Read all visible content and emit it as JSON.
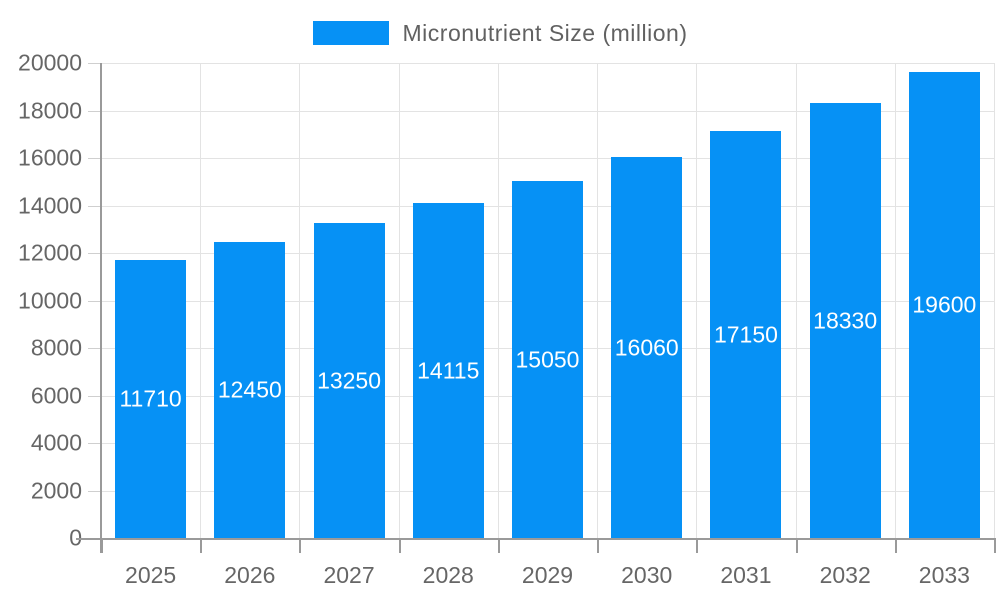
{
  "legend": {
    "label": "Micronutrient Size (million)"
  },
  "chart_data": {
    "type": "bar",
    "title": "",
    "categories": [
      "2025",
      "2026",
      "2027",
      "2028",
      "2029",
      "2030",
      "2031",
      "2032",
      "2033"
    ],
    "series": [
      {
        "name": "Micronutrient Size (million)",
        "values": [
          11710,
          12450,
          13250,
          14115,
          15050,
          16060,
          17150,
          18330,
          19600
        ]
      }
    ],
    "xlabel": "",
    "ylabel": "",
    "ylim": [
      0,
      20000
    ],
    "ytick_step": 2000,
    "grid": true,
    "legend_position": "top-center",
    "value_labels": "inside-center",
    "colors": {
      "bar": "#0691f5",
      "value_label_text": "#ffffff",
      "axis_text": "#666666",
      "legend_text": "#616161",
      "gridline": "#e3e3e3",
      "axis_line": "#9a9a9a",
      "background": "#ffffff"
    }
  }
}
